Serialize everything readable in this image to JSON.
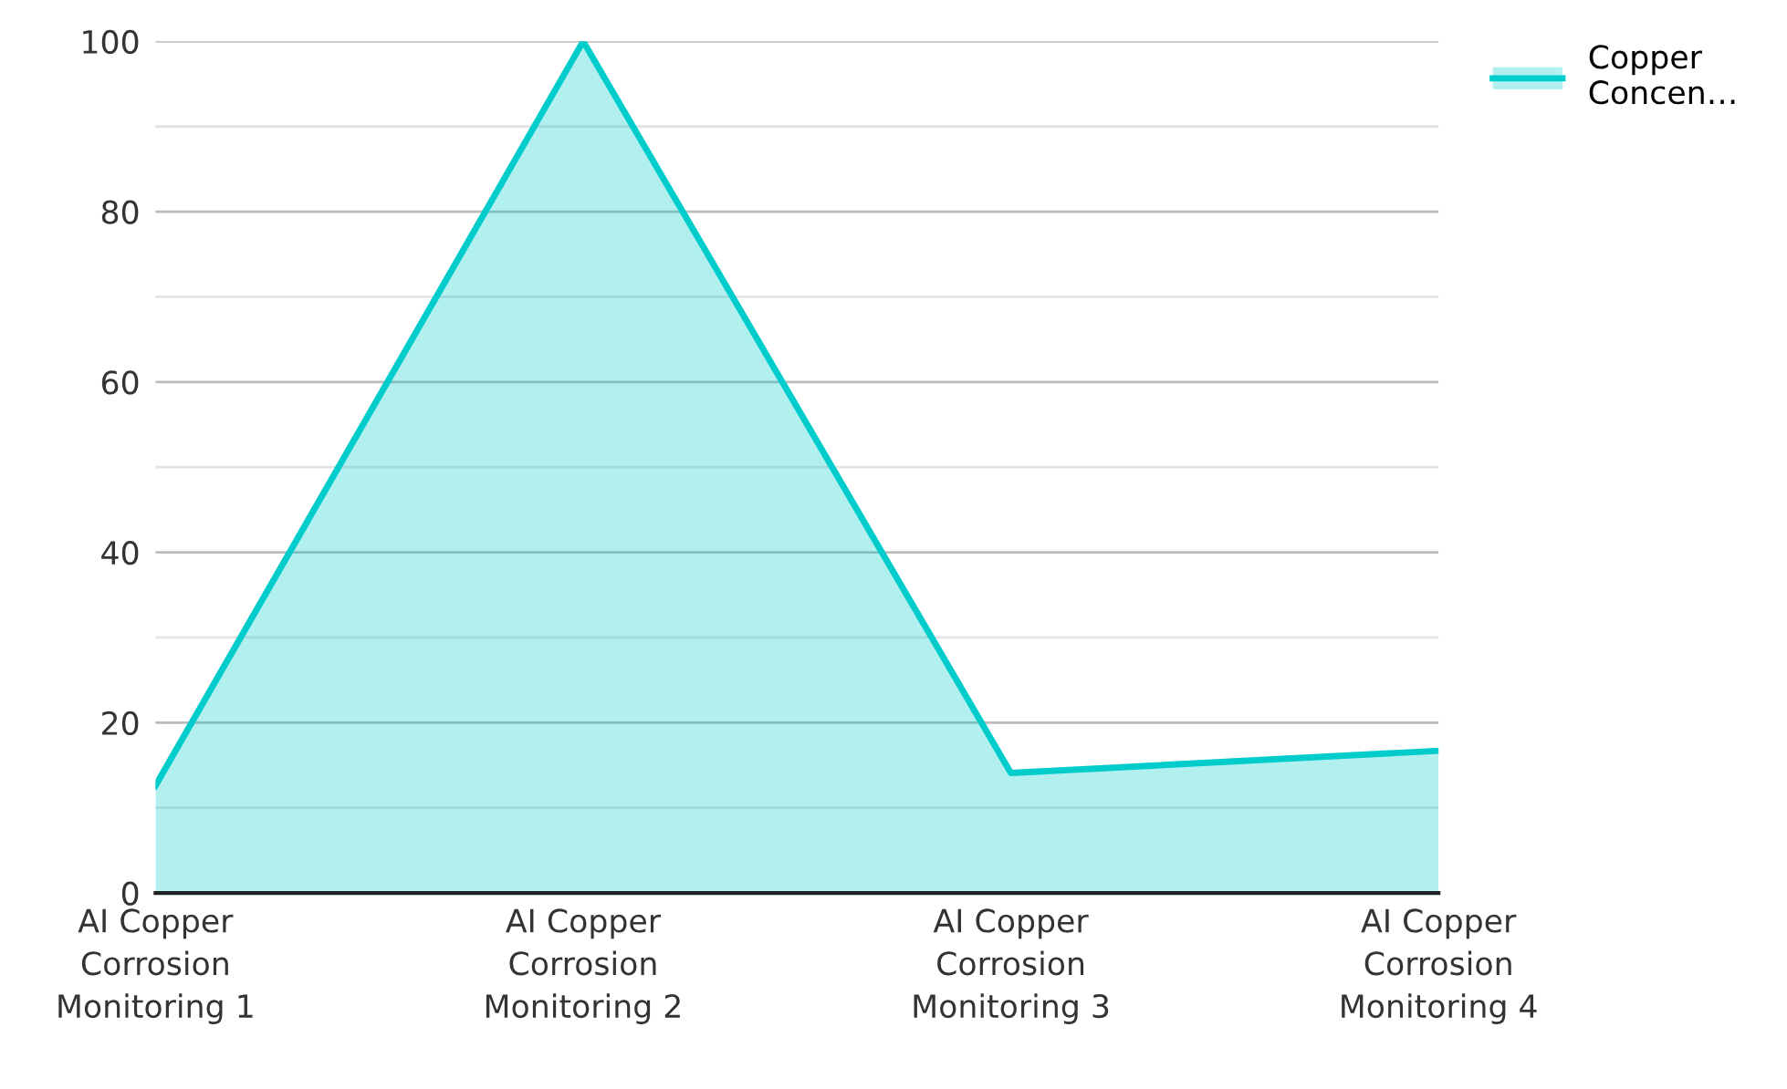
{
  "chart_data": {
    "type": "area",
    "categories": [
      "AI Copper Corrosion Monitoring 1",
      "AI Copper Corrosion Monitoring 2",
      "AI Copper Corrosion Monitoring 3",
      "AI Copper Corrosion Monitoring 4"
    ],
    "series": [
      {
        "name": "Copper Concen…",
        "color": "#00cccc",
        "values": [
          12.6,
          100,
          14.1,
          16.7
        ]
      }
    ],
    "ylim": [
      0,
      100
    ],
    "yticks": [
      0,
      {
        "value": 10,
        "label": null
      },
      20,
      {
        "value": 30,
        "label": null
      },
      40,
      {
        "value": 50,
        "label": null
      },
      60,
      {
        "value": 70,
        "label": null
      },
      80,
      {
        "value": 90,
        "label": null
      },
      100
    ],
    "grid": "y",
    "legend": "top right"
  }
}
